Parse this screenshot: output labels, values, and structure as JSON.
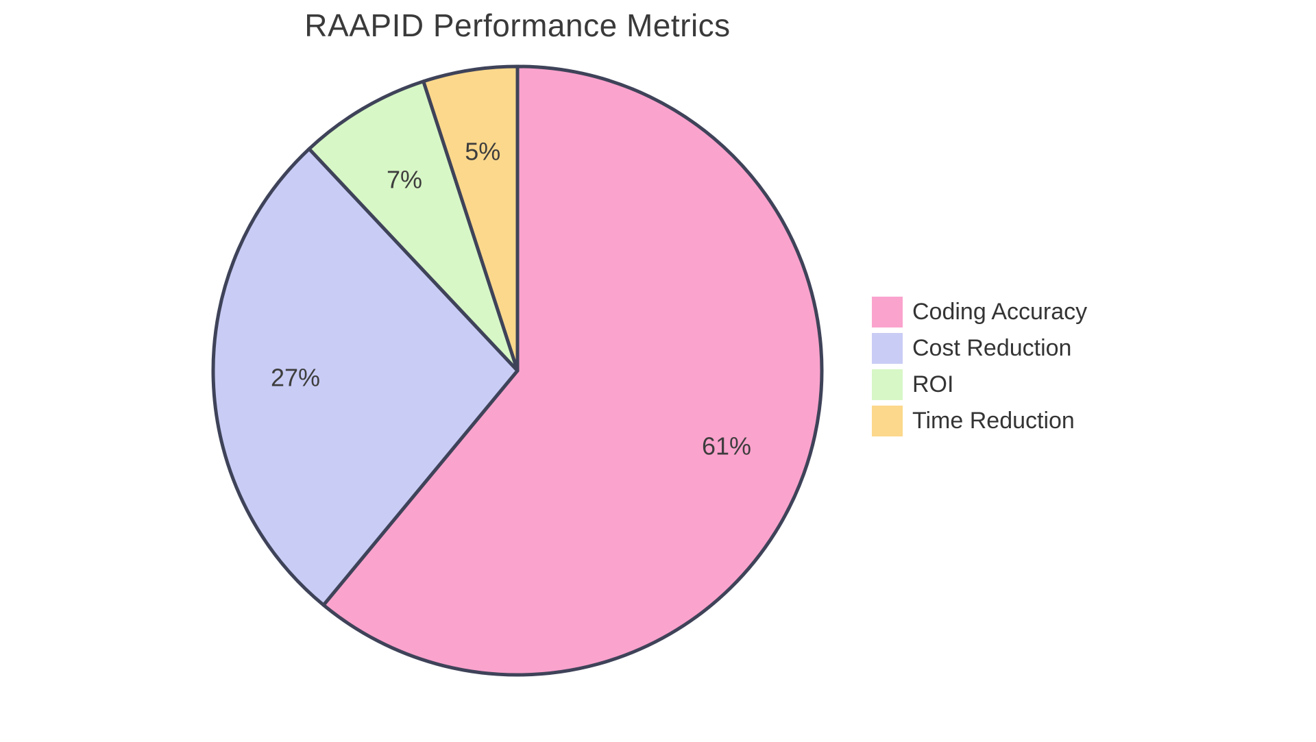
{
  "chart_data": {
    "type": "pie",
    "title": "RAAPID Performance Metrics",
    "total": 100,
    "start_angle_deg_from_top": 0,
    "direction": "clockwise",
    "slice_outline_color": "#3f4359",
    "percent_label_color": "#3d3d3d",
    "title_color": "#3a3a3a",
    "background_color": "#ffffff",
    "legend": {
      "position": "right",
      "text_color": "#343434"
    },
    "segments": [
      {
        "label": "Coding Accuracy",
        "value": 61,
        "percent_label": "61%",
        "color": "#faa3cd"
      },
      {
        "label": "Cost Reduction",
        "value": 27,
        "percent_label": "27%",
        "color": "#c9ccf5"
      },
      {
        "label": "ROI",
        "value": 7,
        "percent_label": "7%",
        "color": "#d7f7c6"
      },
      {
        "label": "Time Reduction",
        "value": 5,
        "percent_label": "5%",
        "color": "#fcd88c"
      }
    ]
  }
}
